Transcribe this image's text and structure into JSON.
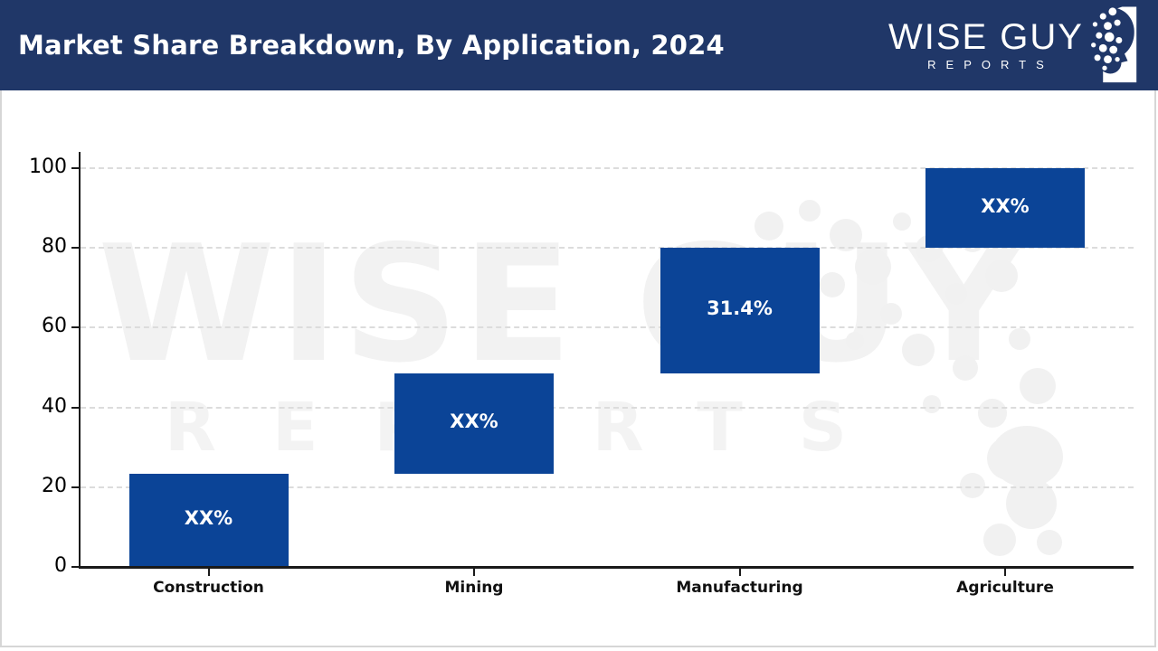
{
  "header": {
    "title": "Market Share Breakdown, By Application, 2024",
    "logo": {
      "brand": "WISE GUY",
      "sub": "REPORTS"
    }
  },
  "watermark": {
    "line1": "WISE GUY",
    "line2": "REPORTS"
  },
  "chart_data": {
    "type": "bar",
    "subtype": "waterfall",
    "title": "Market Share Breakdown, By Application, 2024",
    "categories": [
      "Construction",
      "Mining",
      "Manufacturing",
      "Agriculture"
    ],
    "segments": [
      {
        "category": "Construction",
        "start": 0,
        "end": 23.4,
        "label": "XX%"
      },
      {
        "category": "Mining",
        "start": 23.4,
        "end": 48.6,
        "label": "XX%"
      },
      {
        "category": "Manufacturing",
        "start": 48.6,
        "end": 80.0,
        "label": "31.4%"
      },
      {
        "category": "Agriculture",
        "start": 80.0,
        "end": 100.0,
        "label": "XX%"
      }
    ],
    "ylim": [
      0,
      100
    ],
    "yticks": [
      0,
      20,
      40,
      60,
      80,
      100
    ],
    "grid": "horizontal-dashed",
    "legend": "none",
    "bar_color": "#0b4497",
    "bar_label_color": "#ffffff"
  },
  "colors": {
    "header_bg": "#203768",
    "bar": "#0b4497",
    "grid": "#dcdcdc",
    "axis": "#1a1a1a",
    "watermark": "#f2f2f2",
    "border": "#d6d6d6"
  }
}
